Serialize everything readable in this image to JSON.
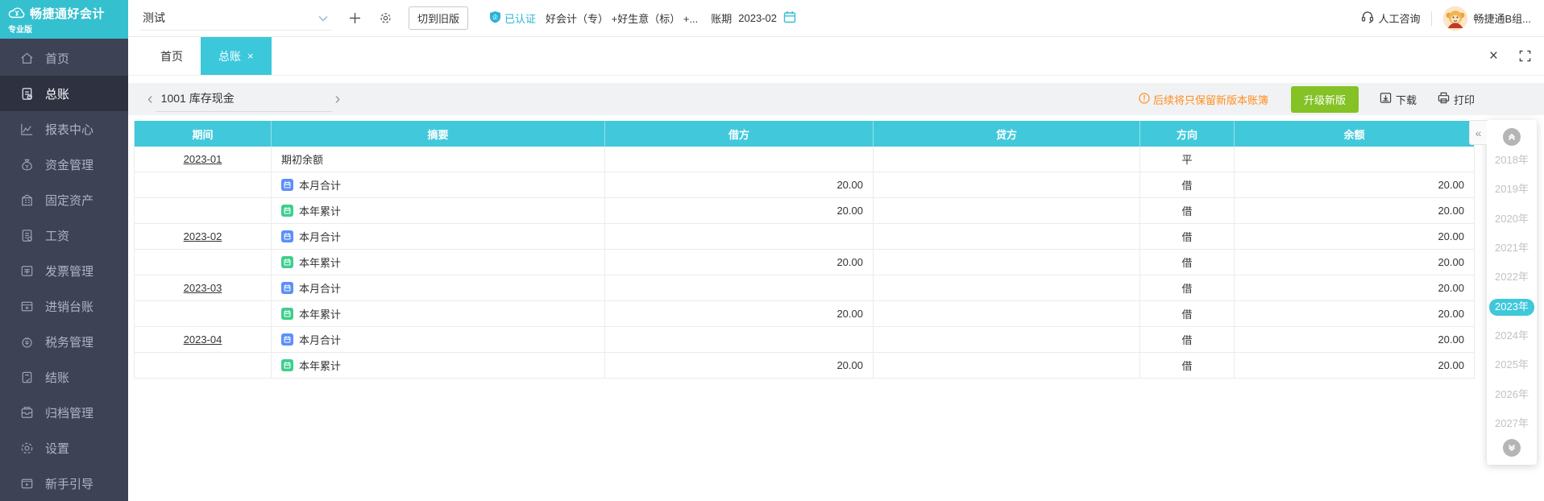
{
  "app": {
    "logo_title": "畅捷通好会计",
    "logo_sub": "专业版",
    "account_set": "测试",
    "switch_old_label": "切到旧版",
    "certified_label": "已认证",
    "products_label": "好会计（专） +好生意（标） +...",
    "period_label": "账期",
    "period_value": "2023-02",
    "support_label": "人工咨询",
    "user_name": "畅捷通B组..."
  },
  "sidebar": {
    "items": [
      {
        "label": "首页",
        "icon": "home",
        "active": false
      },
      {
        "label": "总账",
        "icon": "ledger",
        "active": true
      },
      {
        "label": "报表中心",
        "icon": "report",
        "active": false
      },
      {
        "label": "资金管理",
        "icon": "funds",
        "active": false
      },
      {
        "label": "固定资产",
        "icon": "asset",
        "active": false
      },
      {
        "label": "工资",
        "icon": "salary",
        "active": false
      },
      {
        "label": "发票管理",
        "icon": "invoice",
        "active": false
      },
      {
        "label": "进销台账",
        "icon": "trade",
        "active": false
      },
      {
        "label": "税务管理",
        "icon": "tax",
        "active": false
      },
      {
        "label": "结账",
        "icon": "closing",
        "active": false
      },
      {
        "label": "归档管理",
        "icon": "archive",
        "active": false
      },
      {
        "label": "设置",
        "icon": "settings",
        "active": false
      },
      {
        "label": "新手引导",
        "icon": "guide",
        "active": false
      }
    ]
  },
  "tabs": {
    "home_label": "首页",
    "active_label": "总账",
    "close_symbol": "×"
  },
  "toolbar": {
    "prev_symbol": "‹",
    "account_title": "1001 库存现金",
    "next_symbol": "›",
    "notice_text": "后续将只保留新版本账簿",
    "upgrade_label": "升级新版",
    "download_label": "下载",
    "print_label": "打印"
  },
  "table": {
    "columns": [
      "期间",
      "摘要",
      "借方",
      "贷方",
      "方向",
      "余额"
    ],
    "rows": [
      {
        "period": "2023-01",
        "badge": "",
        "summary": "期初余额",
        "debit": "",
        "credit": "",
        "direction": "平",
        "balance": ""
      },
      {
        "period": "",
        "badge": "month",
        "summary": "本月合计",
        "debit": "20.00",
        "credit": "",
        "direction": "借",
        "balance": "20.00"
      },
      {
        "period": "",
        "badge": "year",
        "summary": "本年累计",
        "debit": "20.00",
        "credit": "",
        "direction": "借",
        "balance": "20.00"
      },
      {
        "period": "2023-02",
        "badge": "month",
        "summary": "本月合计",
        "debit": "",
        "credit": "",
        "direction": "借",
        "balance": "20.00"
      },
      {
        "period": "",
        "badge": "year",
        "summary": "本年累计",
        "debit": "20.00",
        "credit": "",
        "direction": "借",
        "balance": "20.00"
      },
      {
        "period": "2023-03",
        "badge": "month",
        "summary": "本月合计",
        "debit": "",
        "credit": "",
        "direction": "借",
        "balance": "20.00"
      },
      {
        "period": "",
        "badge": "year",
        "summary": "本年累计",
        "debit": "20.00",
        "credit": "",
        "direction": "借",
        "balance": "20.00"
      },
      {
        "period": "2023-04",
        "badge": "month",
        "summary": "本月合计",
        "debit": "",
        "credit": "",
        "direction": "借",
        "balance": "20.00"
      },
      {
        "period": "",
        "badge": "year",
        "summary": "本年累计",
        "debit": "20.00",
        "credit": "",
        "direction": "借",
        "balance": "20.00"
      }
    ]
  },
  "year_panel": {
    "collapse_symbol": "«",
    "years": [
      "2018年",
      "2019年",
      "2020年",
      "2021年",
      "2022年",
      "2023年",
      "2024年",
      "2025年",
      "2026年",
      "2027年"
    ],
    "active_year": "2023年"
  },
  "colors": {
    "accent_cyan": "#35c0d0",
    "table_header": "#41c9db",
    "tab_active": "#3bc8db",
    "sidebar_bg": "#3d4255",
    "sidebar_active_bg": "#2e3240",
    "upgrade_green": "#84c225",
    "notice_orange": "#ff8e1c",
    "month_badge_blue": "#5b8ff9",
    "year_badge_green": "#3ece8f",
    "year_active": "#3ec8da"
  }
}
